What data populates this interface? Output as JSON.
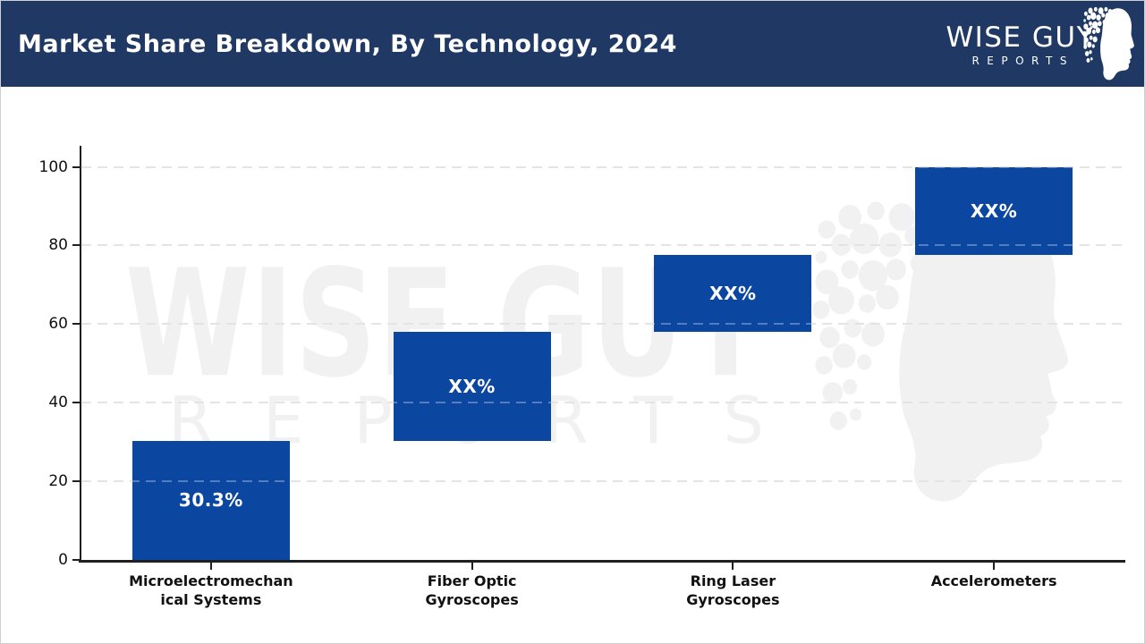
{
  "header": {
    "title": "Market Share Breakdown, By Technology, 2024",
    "logo": {
      "wordmark": "WISE GUY",
      "subtext": "REPORTS"
    }
  },
  "watermark": {
    "wordmark": "WISE GUY",
    "subtext": "REPORTS"
  },
  "chart_data": {
    "type": "bar",
    "subtype": "waterfall",
    "title": "Market Share Breakdown, By Technology, 2024",
    "categories": [
      "Microelectromechanical Systems",
      "Fiber Optic Gyroscopes",
      "Ring Laser Gyroscopes",
      "Accelerometers"
    ],
    "category_label_lines": [
      [
        "Microelectromechan",
        "ical Systems"
      ],
      [
        "Fiber Optic",
        "Gyroscopes"
      ],
      [
        "Ring Laser",
        "Gyroscopes"
      ],
      [
        "Accelerometers"
      ]
    ],
    "segments": [
      {
        "category": "Microelectromechanical Systems",
        "start": 0,
        "end": 30.3,
        "label": "30.3%"
      },
      {
        "category": "Fiber Optic Gyroscopes",
        "start": 30.3,
        "end": 58,
        "label": "XX%"
      },
      {
        "category": "Ring Laser Gyroscopes",
        "start": 58,
        "end": 77.5,
        "label": "XX%"
      },
      {
        "category": "Accelerometers",
        "start": 77.5,
        "end": 100,
        "label": "XX%"
      }
    ],
    "yticks": [
      0,
      20,
      40,
      60,
      80,
      100
    ],
    "ylim": [
      0,
      105
    ],
    "xlabel": "",
    "ylabel": "",
    "grid": true,
    "legend": false,
    "bar_color": "#0b46a1",
    "bar_label_color": "#ffffff"
  },
  "colors": {
    "header_bg": "#1f3864",
    "bar": "#0b46a1",
    "gridline": "#d8d8d8",
    "axis": "#1f1f1f",
    "watermark": "#f1f1f1",
    "page_border": "#cfcfcf",
    "text": "#111111"
  }
}
